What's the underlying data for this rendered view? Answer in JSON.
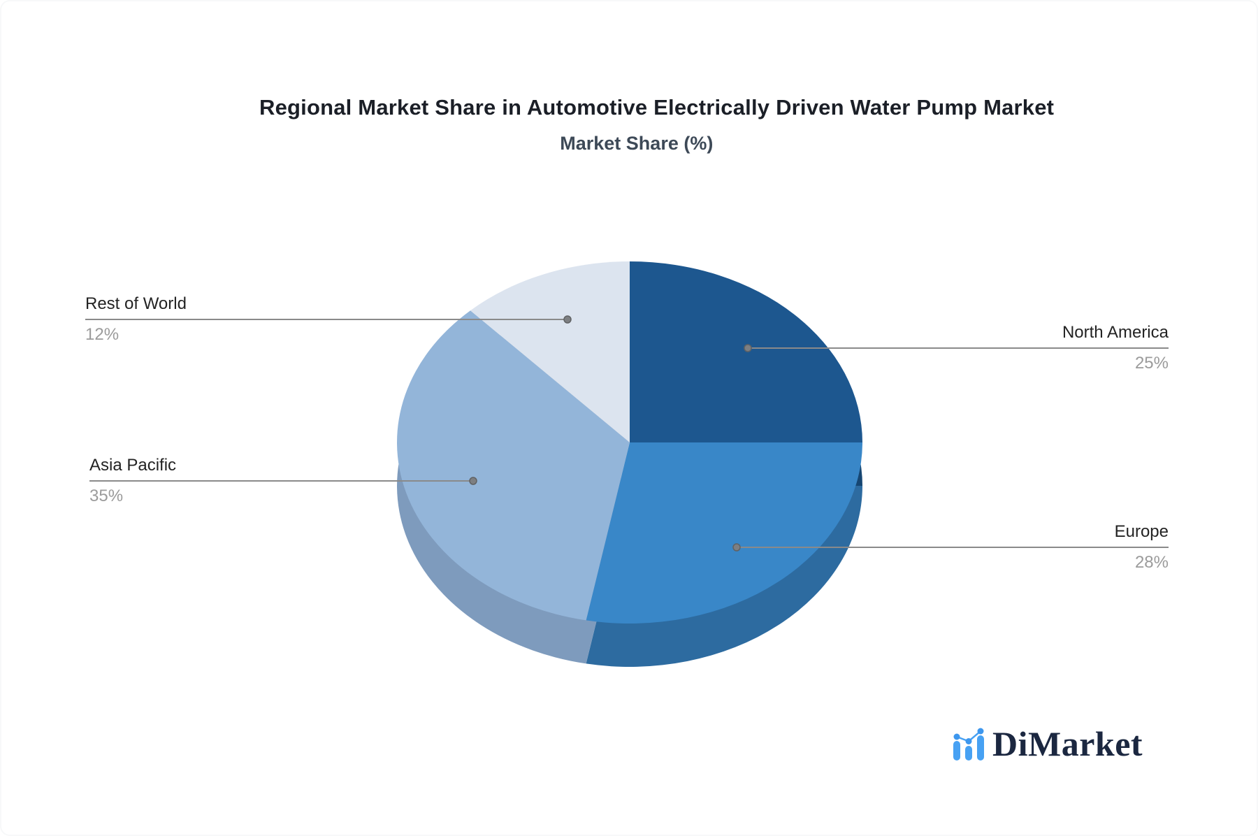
{
  "title": "Regional Market Share in Automotive Electrically Driven Water Pump Market",
  "subtitle": "Market Share (%)",
  "logo": {
    "text": "DiMarket",
    "icon": "bar-line-chart-icon"
  },
  "chart_data": {
    "type": "pie",
    "style": "3d",
    "title": "Regional Market Share in Automotive Electrically Driven Water Pump Market",
    "subtitle": "Market Share (%)",
    "unit": "%",
    "start_angle": "12-oclock",
    "direction": "clockwise",
    "legend_position": "callout-labels",
    "series": [
      {
        "name": "North America",
        "value": 25,
        "label_pct": "25%",
        "color": "#1d578f",
        "side_color": "#164672"
      },
      {
        "name": "Europe",
        "value": 28,
        "label_pct": "28%",
        "color": "#3987c8",
        "side_color": "#2d6ba0"
      },
      {
        "name": "Asia Pacific",
        "value": 35,
        "label_pct": "35%",
        "color": "#93b5d9",
        "side_color": "#7e9bbd"
      },
      {
        "name": "Rest of World",
        "value": 12,
        "label_pct": "12%",
        "color": "#dce4ef",
        "side_color": "#b3bfd0"
      }
    ]
  }
}
